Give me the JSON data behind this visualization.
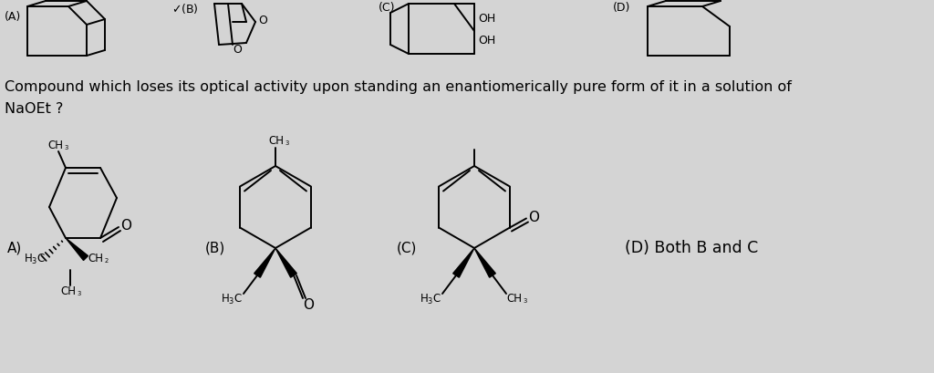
{
  "background_color": "#d4d4d4",
  "question_line1": "Compound which loses its optical activity upon standing an enantiomerically pure form of it in a solution of",
  "question_line2": "NaOEt ?",
  "answer_D": "(D) Both B and C",
  "label_A": "A)",
  "label_B": "(B)",
  "label_C": "(C)",
  "fig_width": 10.24,
  "fig_height": 4.1,
  "dpi": 100
}
